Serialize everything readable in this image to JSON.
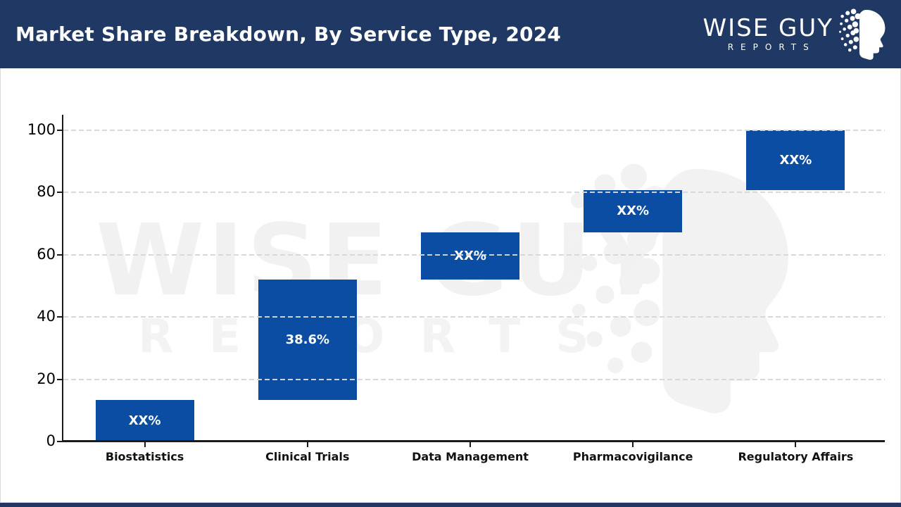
{
  "header": {
    "title": "Market Share Breakdown, By Service Type, 2024",
    "logo": {
      "line1": "WISE GUY",
      "line2": "REPORTS"
    }
  },
  "watermark": {
    "line1": "WISE GUY",
    "line2": "REPORTS"
  },
  "colors": {
    "header_bg": "#203864",
    "footer_bg": "#203864",
    "bar": "#0b4da2",
    "axis": "#1a1a1a",
    "grid": "#d7d7d7",
    "bar_label": "#ffffff",
    "watermark": "#f1f1f1"
  },
  "chart_data": {
    "type": "bar",
    "subtype": "waterfall",
    "title": "Market Share Breakdown, By Service Type, 2024",
    "categories": [
      "Biostatistics",
      "Clinical Trials",
      "Data Management",
      "Pharmacovigilance",
      "Regulatory Affairs"
    ],
    "segments": [
      {
        "category": "Biostatistics",
        "start": 0,
        "end": 13.4,
        "value_label": "XX%"
      },
      {
        "category": "Clinical Trials",
        "start": 13.4,
        "end": 52.0,
        "value_label": "38.6%",
        "value": 38.6
      },
      {
        "category": "Data Management",
        "start": 52.0,
        "end": 67.2,
        "value_label": "XX%"
      },
      {
        "category": "Pharmacovigilance",
        "start": 67.2,
        "end": 80.8,
        "value_label": "XX%"
      },
      {
        "category": "Regulatory Affairs",
        "start": 80.8,
        "end": 100,
        "value_label": "XX%"
      }
    ],
    "ylim": [
      0,
      100
    ],
    "yticks": [
      0,
      20,
      40,
      60,
      80,
      100
    ],
    "xlabel": "",
    "ylabel": "",
    "grid": "horizontal-dashed",
    "legend": "none",
    "bar_color": "#0b4da2"
  }
}
